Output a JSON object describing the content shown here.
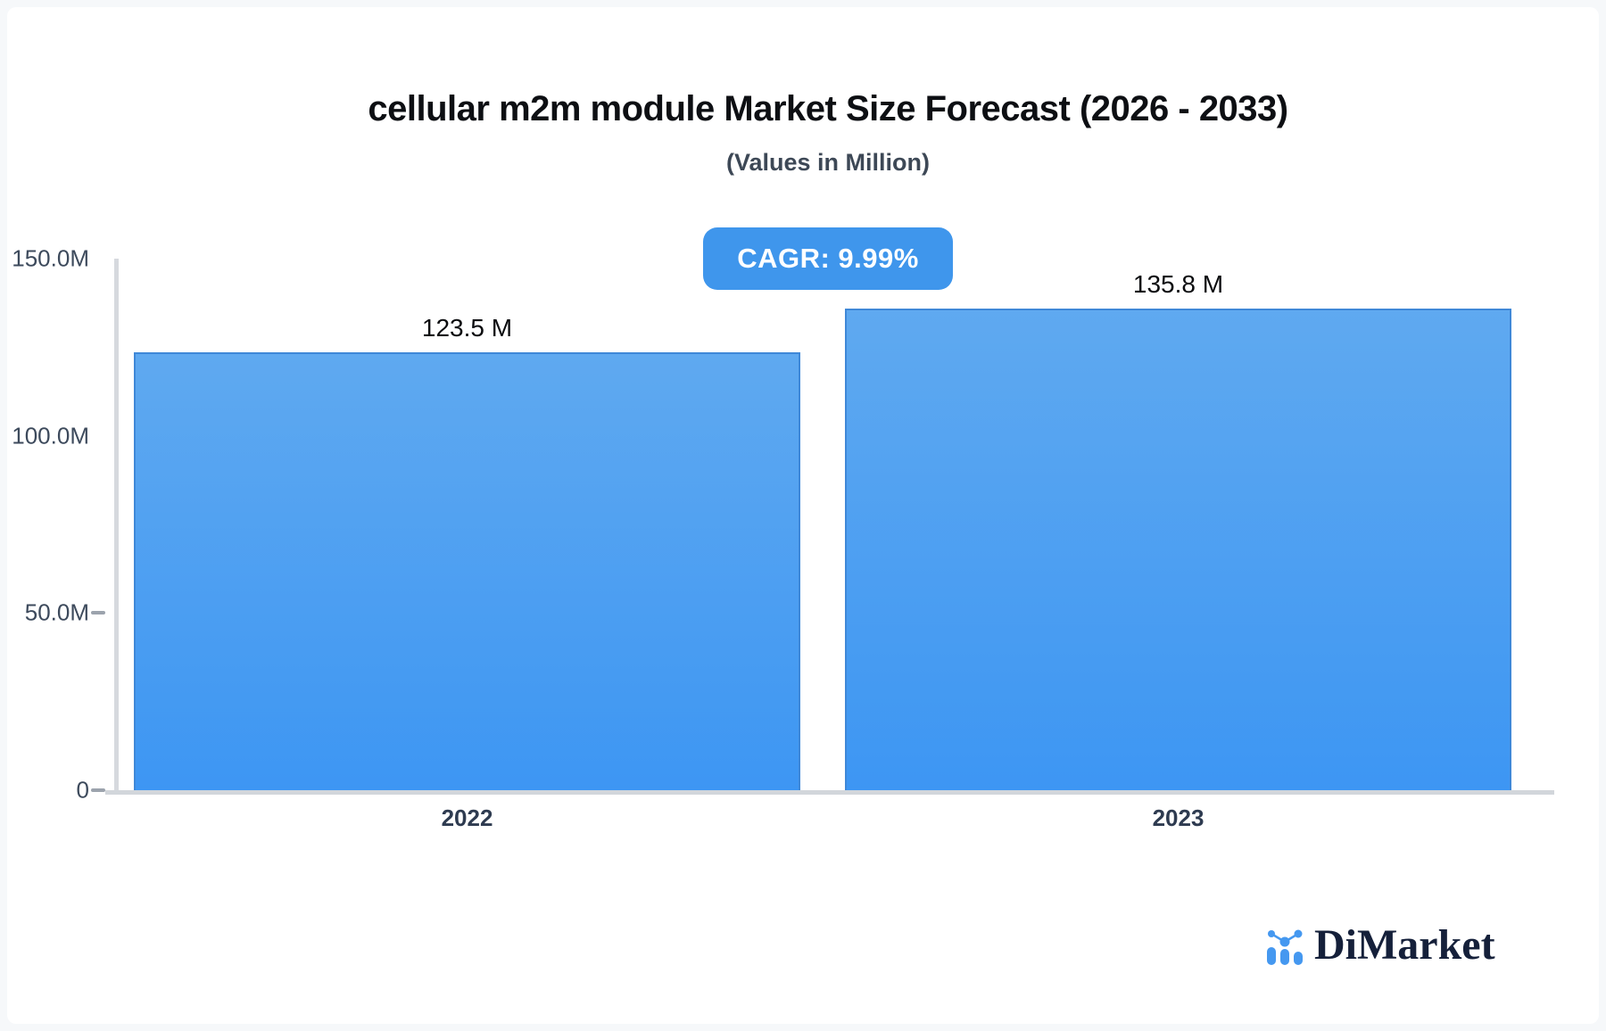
{
  "page": {
    "background": "#f6f8fa",
    "card_background": "#ffffff"
  },
  "header": {
    "title": "cellular m2m module Market Size Forecast (2026 - 2033)",
    "subtitle": "(Values in Million)"
  },
  "badge": {
    "label": "CAGR: 9.99%",
    "color": "#3f96ec"
  },
  "chart_data": {
    "type": "bar",
    "title": "cellular m2m module Market Size Forecast (2026 - 2033)",
    "subtitle": "(Values in Million)",
    "unit": "Million",
    "cagr_percent": 9.99,
    "categories": [
      "2022",
      "2023"
    ],
    "values": [
      123.5,
      135.8
    ],
    "value_labels": [
      "123.5 M",
      "135.8 M"
    ],
    "ylim": [
      0,
      150
    ],
    "yticks": [
      {
        "label": "150.0M",
        "value": 150,
        "tick_mark": false
      },
      {
        "label": "100.0M",
        "value": 100,
        "tick_mark": false
      },
      {
        "label": "50.0M",
        "value": 50,
        "tick_mark": true
      },
      {
        "label": "0",
        "value": 0,
        "tick_mark": true
      }
    ],
    "grid": false,
    "legend": false,
    "bar_color_top": "#5fa9f0",
    "bar_color_bottom": "#3d96f3",
    "bar_border_color": "#3f88d8",
    "axis_color": "#d4d7dc"
  },
  "footer": {
    "brand": "DiMarket",
    "brand_color": "#15203a",
    "logo_icon": "bar-line-chart-icon",
    "logo_icon_color": "#4598f0"
  }
}
